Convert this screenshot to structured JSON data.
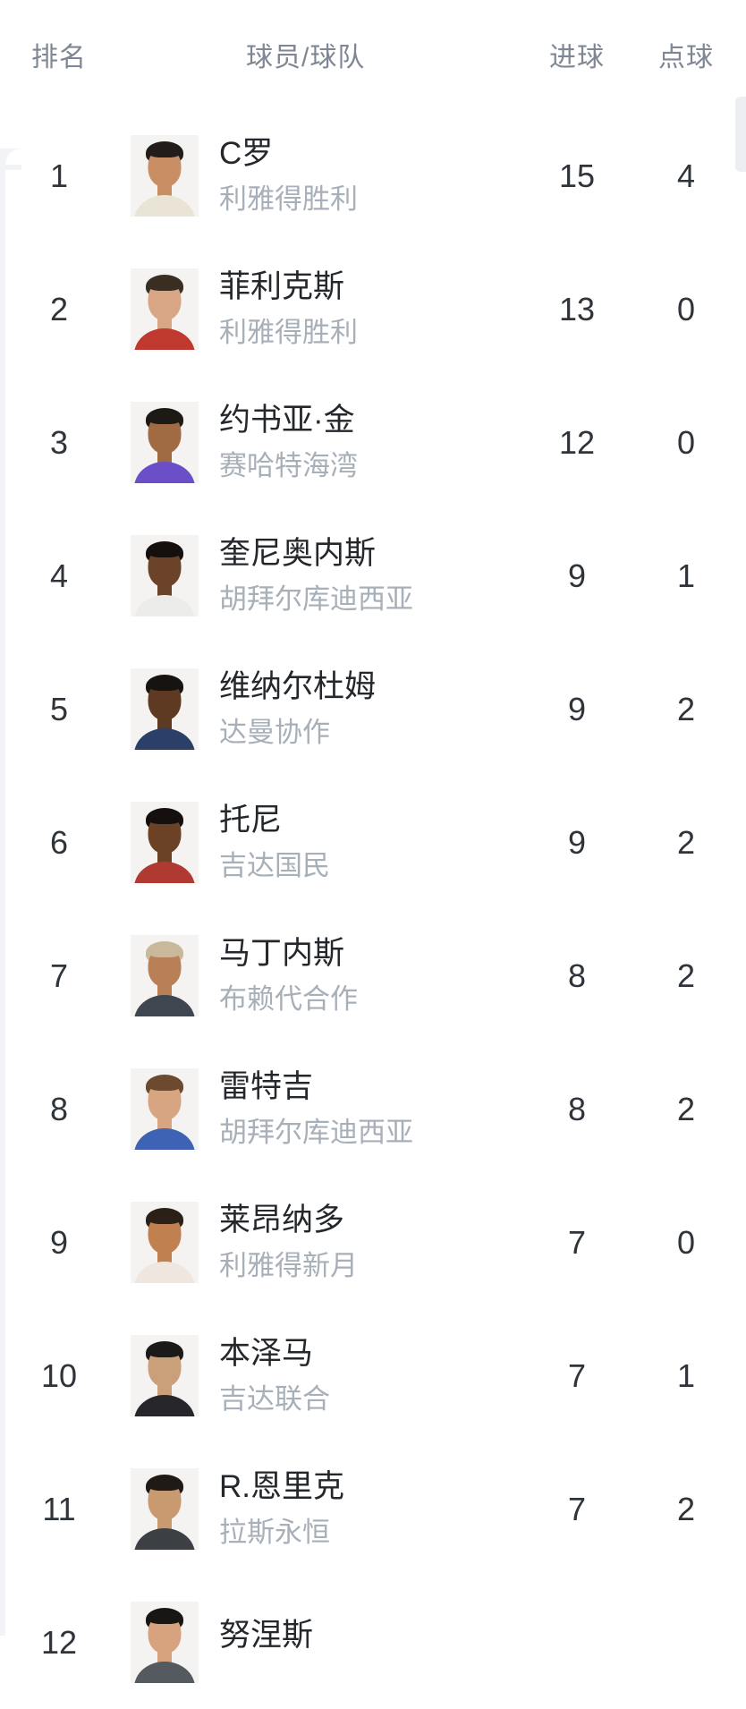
{
  "table": {
    "columns": {
      "rank": "排名",
      "player": "球员/球队",
      "goals": "进球",
      "penalties": "点球"
    },
    "rows": [
      {
        "rank": "1",
        "name": "C罗",
        "team": "利雅得胜利",
        "goals": "15",
        "penalties": "4",
        "avatar": {
          "hair": "#221d1a",
          "skin": "#c98e63",
          "jersey": "#e9e4d6"
        }
      },
      {
        "rank": "2",
        "name": "菲利克斯",
        "team": "利雅得胜利",
        "goals": "13",
        "penalties": "0",
        "avatar": {
          "hair": "#3a2d22",
          "skin": "#d9a685",
          "jersey": "#c0392f"
        }
      },
      {
        "rank": "3",
        "name": "约书亚·金",
        "team": "赛哈特海湾",
        "goals": "12",
        "penalties": "0",
        "avatar": {
          "hair": "#1d1915",
          "skin": "#a06a42",
          "jersey": "#6a4fc9"
        }
      },
      {
        "rank": "4",
        "name": "奎尼奥内斯",
        "team": "胡拜尔库迪西亚",
        "goals": "9",
        "penalties": "1",
        "avatar": {
          "hair": "#15100d",
          "skin": "#6b4328",
          "jersey": "#ececea"
        }
      },
      {
        "rank": "5",
        "name": "维纳尔杜姆",
        "team": "达曼协作",
        "goals": "9",
        "penalties": "2",
        "avatar": {
          "hair": "#171310",
          "skin": "#5f3a22",
          "jersey": "#2c3f68"
        }
      },
      {
        "rank": "6",
        "name": "托尼",
        "team": "吉达国民",
        "goals": "9",
        "penalties": "2",
        "avatar": {
          "hair": "#15100d",
          "skin": "#6b4226",
          "jersey": "#b03a32"
        }
      },
      {
        "rank": "7",
        "name": "马丁内斯",
        "team": "布赖代合作",
        "goals": "8",
        "penalties": "2",
        "avatar": {
          "hair": "#c9b89a",
          "skin": "#b97f56",
          "jersey": "#3e4650"
        }
      },
      {
        "rank": "8",
        "name": "雷特吉",
        "team": "胡拜尔库迪西亚",
        "goals": "8",
        "penalties": "2",
        "avatar": {
          "hair": "#6b4a2f",
          "skin": "#d8a583",
          "jersey": "#3f63b4"
        }
      },
      {
        "rank": "9",
        "name": "莱昂纳多",
        "team": "利雅得新月",
        "goals": "7",
        "penalties": "0",
        "avatar": {
          "hair": "#2b2017",
          "skin": "#c08050",
          "jersey": "#efe7df"
        }
      },
      {
        "rank": "10",
        "name": "本泽马",
        "team": "吉达联合",
        "goals": "7",
        "penalties": "1",
        "avatar": {
          "hair": "#1c1a18",
          "skin": "#caa07a",
          "jersey": "#27262a"
        }
      },
      {
        "rank": "11",
        "name": "R.恩里克",
        "team": "拉斯永恒",
        "goals": "7",
        "penalties": "2",
        "avatar": {
          "hair": "#201a16",
          "skin": "#c99a6f",
          "jersey": "#3c3f44"
        }
      },
      {
        "rank": "12",
        "name": "努涅斯",
        "team": "",
        "goals": "",
        "penalties": "",
        "avatar": {
          "hair": "#191513",
          "skin": "#d6a37e",
          "jersey": "#555a60"
        }
      }
    ]
  },
  "theme": {
    "header_text": "#7e8793",
    "primary_text": "#24282c",
    "secondary_text": "#a7afb9",
    "page_background": "#ffffff",
    "gutter_background": "#f1f3f6"
  }
}
